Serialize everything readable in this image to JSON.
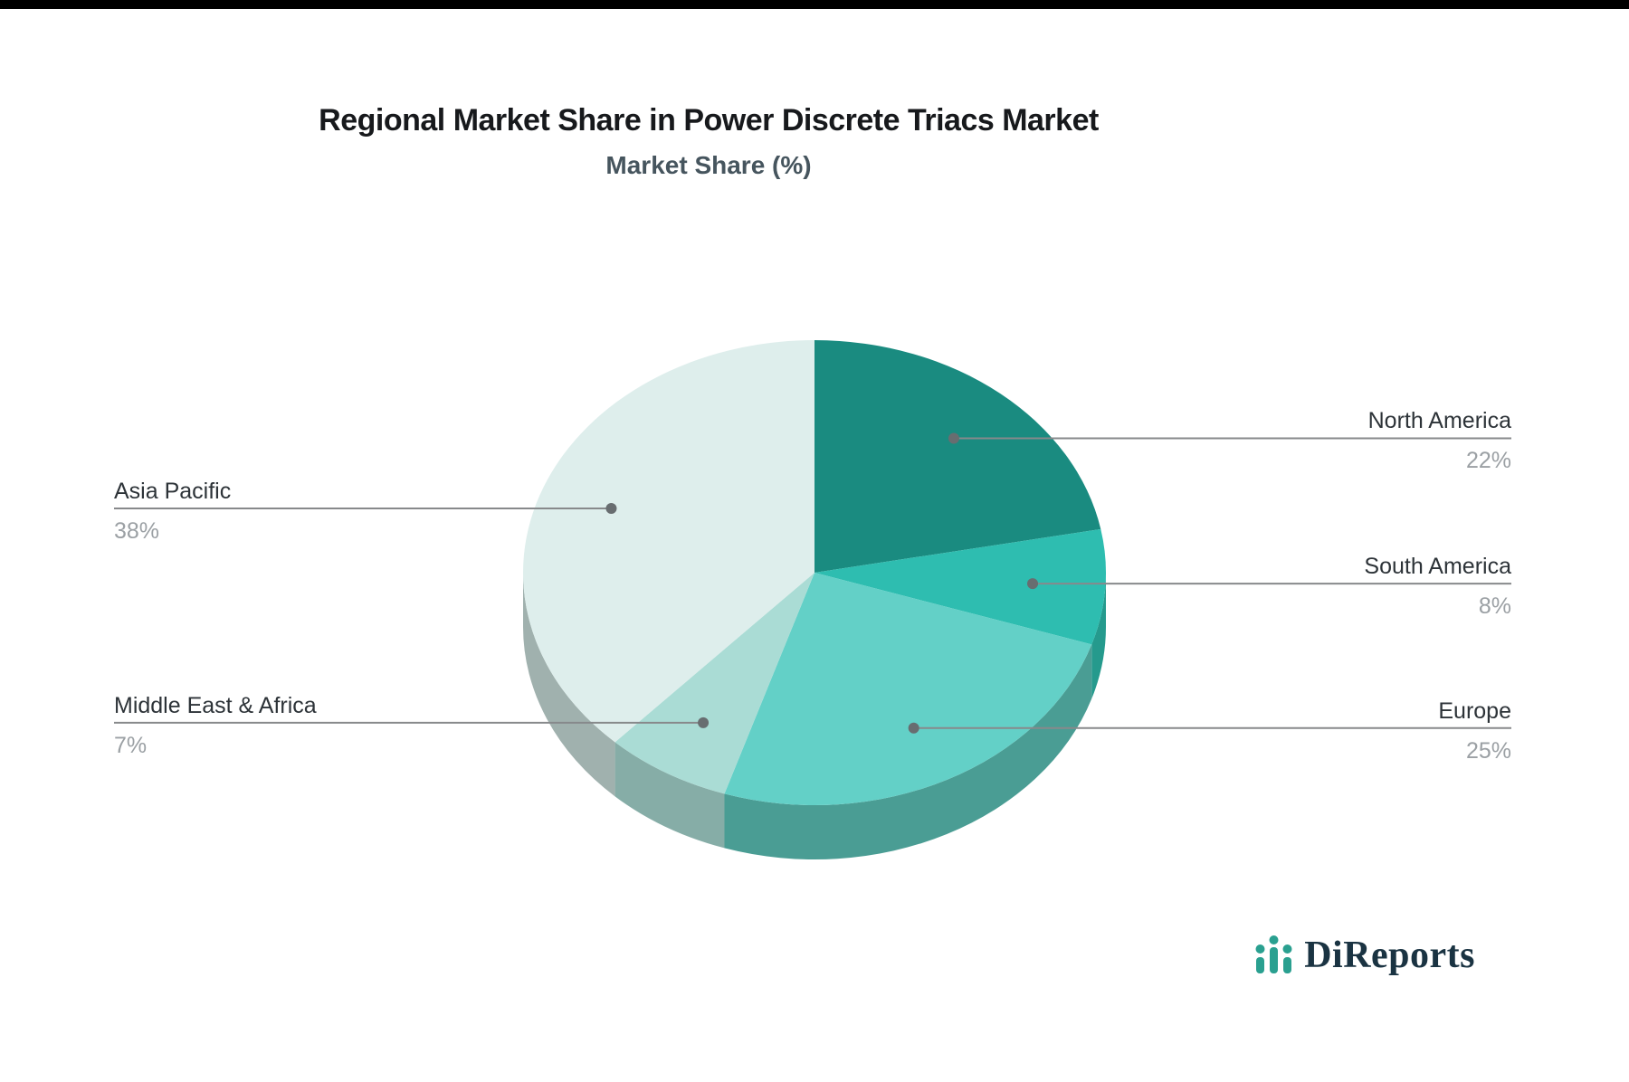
{
  "page": {
    "background_color": "#ffffff",
    "top_bar_color": "#000000"
  },
  "header": {
    "title": "Regional Market Share in Power Discrete Triacs Market",
    "subtitle": "Market Share (%)",
    "title_color": "#17191c",
    "subtitle_color": "#46555e"
  },
  "chart_data": {
    "type": "pie",
    "style": "3d",
    "title": "Regional Market Share in Power Discrete Triacs Market",
    "subtitle": "Market Share (%)",
    "unit": "%",
    "start_angle_deg": 0,
    "direction": "clockwise",
    "legend_position": "callout-labels",
    "categories": [
      "North America",
      "South America",
      "Europe",
      "Middle East & Africa",
      "Asia Pacific"
    ],
    "values": [
      22,
      8,
      25,
      7,
      38
    ],
    "slices": [
      {
        "label": "North America",
        "value": 22,
        "display_value": "22%",
        "color": "#1a8b80",
        "side_color": "#156f67",
        "label_side": "right"
      },
      {
        "label": "South America",
        "value": 8,
        "display_value": "8%",
        "color": "#2ebdb0",
        "side_color": "#259a8d",
        "label_side": "right"
      },
      {
        "label": "Europe",
        "value": 25,
        "display_value": "25%",
        "color": "#63d0c7",
        "side_color": "#4a9d94",
        "label_side": "right"
      },
      {
        "label": "Middle East & Africa",
        "value": 7,
        "display_value": "7%",
        "color": "#aadcd5",
        "side_color": "#86ada7",
        "label_side": "left"
      },
      {
        "label": "Asia Pacific",
        "value": 38,
        "display_value": "38%",
        "color": "#deeeec",
        "side_color": "#a0b1ae",
        "label_side": "left"
      }
    ],
    "callout_style": {
      "line_color": "#87898b",
      "dot_color": "#686d70",
      "name_color": "#2d3338",
      "value_color": "#9ba0a4"
    }
  },
  "logo": {
    "text": "DiReports",
    "icon": "mini-bar-chart-logo-icon",
    "icon_color": "#2aa090",
    "text_color": "#1a3342"
  }
}
